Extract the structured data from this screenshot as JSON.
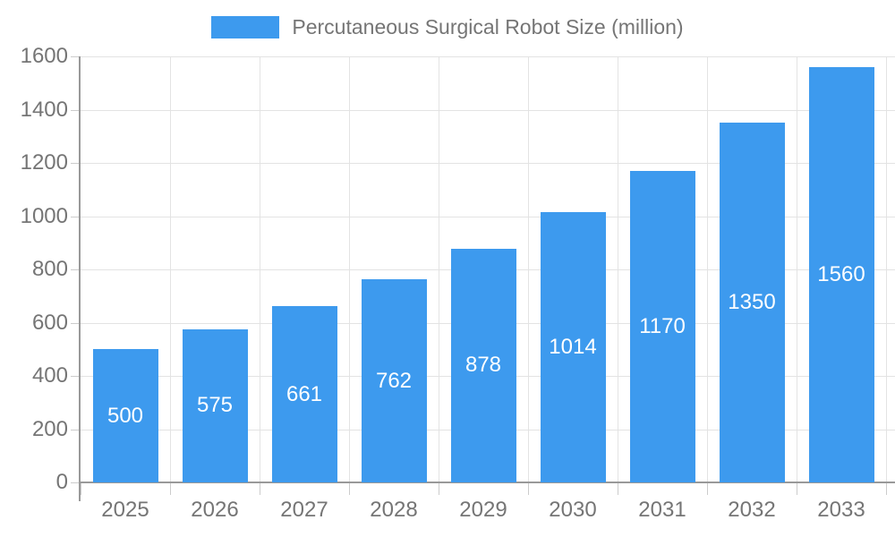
{
  "colors": {
    "bar": "#3d9aee",
    "grid": "#e3e3e3",
    "axis": "#999999",
    "tick": "#cccccc",
    "text": "#757575",
    "value_text": "#ffffff",
    "background": "#ffffff"
  },
  "legend": {
    "label": "Percutaneous Surgical Robot Size (million)",
    "position": "top-center"
  },
  "chart_data": {
    "type": "bar",
    "title": "",
    "categories": [
      "2025",
      "2026",
      "2027",
      "2028",
      "2029",
      "2030",
      "2031",
      "2032",
      "2033"
    ],
    "series": [
      {
        "name": "Percutaneous Surgical Robot Size (million)",
        "values": [
          500,
          575,
          661,
          762,
          878,
          1014,
          1170,
          1350,
          1560
        ]
      }
    ],
    "value_labels": [
      "500",
      "575",
      "661",
      "762",
      "878",
      "1014",
      "1170",
      "1350",
      "1560"
    ],
    "value_label_position": "inside-middle",
    "xlabel": "",
    "ylabel": "",
    "ylim": [
      0,
      1600
    ],
    "yticks": [
      0,
      200,
      400,
      600,
      800,
      1000,
      1200,
      1400,
      1600
    ],
    "grid": "horizontal-and-vertical",
    "legend_position": "top"
  }
}
